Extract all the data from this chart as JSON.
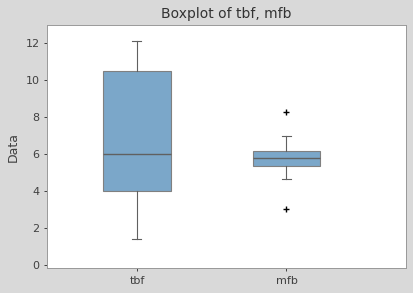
{
  "title": "Boxplot of tbf, mfb",
  "ylabel": "Data",
  "categories": [
    "tbf",
    "mfb"
  ],
  "background_color": "#d9d9d9",
  "plot_background": "#ffffff",
  "box_color": "#7ba7c9",
  "box_edge_color": "#808080",
  "median_color": "#606060",
  "whisker_color": "#606060",
  "cap_color": "#606060",
  "flier_color": "#404040",
  "ylim": [
    -0.2,
    13
  ],
  "yticks": [
    0,
    2,
    4,
    6,
    8,
    10,
    12
  ],
  "tbf": {
    "q1": 4.0,
    "q3": 10.5,
    "median": 6.0,
    "whislo": 1.4,
    "whishi": 12.1,
    "fliers": []
  },
  "mfb": {
    "q1": 5.35,
    "q3": 6.15,
    "median": 5.8,
    "whislo": 4.65,
    "whishi": 7.0,
    "fliers": [
      8.3,
      3.0
    ]
  },
  "title_fontsize": 10,
  "label_fontsize": 9,
  "tick_fontsize": 8,
  "tick_color": "#404040",
  "label_color": "#404040",
  "title_color": "#333333"
}
